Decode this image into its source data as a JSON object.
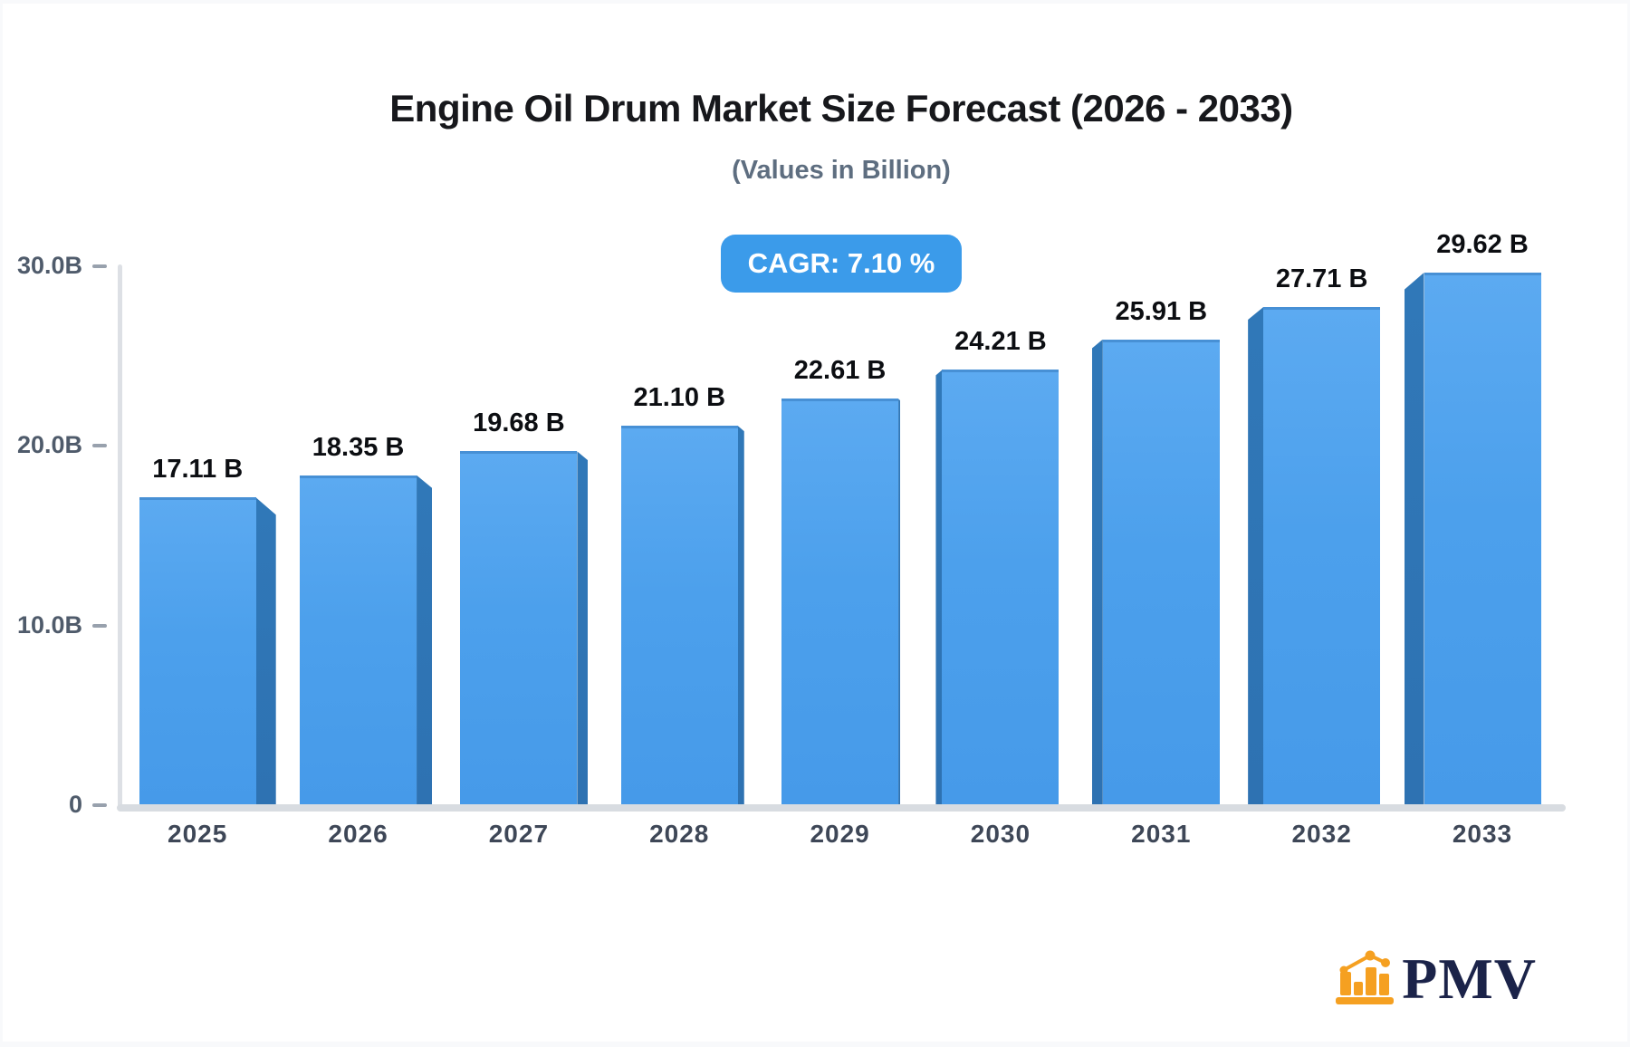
{
  "page": {
    "background": "#F8F9FB",
    "card_background": "#FFFFFF"
  },
  "header": {
    "title": "Engine Oil Drum Market Size Forecast (2026 - 2033)",
    "subtitle": "(Values in Billion)",
    "cagr_label": "CAGR: 7.10 %"
  },
  "chart_data": {
    "type": "bar",
    "title": "Engine Oil Drum Market Size Forecast (2026 - 2033)",
    "subtitle": "(Values in Billion)",
    "cagr": "7.10 %",
    "categories": [
      "2025",
      "2026",
      "2027",
      "2028",
      "2029",
      "2030",
      "2031",
      "2032",
      "2033"
    ],
    "values": [
      17.11,
      18.35,
      19.68,
      21.1,
      22.61,
      24.21,
      25.91,
      27.71,
      29.62
    ],
    "bar_labels": [
      "17.11 B",
      "18.35 B",
      "19.68 B",
      "21.10 B",
      "22.61 B",
      "24.21 B",
      "25.91 B",
      "27.71 B",
      "29.62 B"
    ],
    "xlabel": "",
    "ylabel": "",
    "ylim": [
      0,
      30
    ],
    "yticks": [
      {
        "label": "30.0B",
        "value": 30
      },
      {
        "label": "20.0B",
        "value": 20
      },
      {
        "label": "10.0B",
        "value": 10
      },
      {
        "label": "0",
        "value": 0
      }
    ],
    "grid": false,
    "legend": false,
    "colors": {
      "bar_face_top": "#5CAAF1",
      "bar_face_bottom": "#469AE9",
      "bar_side": "#2E72B2",
      "axis_line": "#DDE0E5",
      "baseline": "#D8DCE1",
      "tick": "#98A1AD",
      "ytick_text": "#4F5B6B",
      "xtick_text": "#3E4757",
      "value_text": "#0C0E12",
      "badge_background": "#3B9BEA",
      "badge_text": "#FFFFFF"
    }
  },
  "branding": {
    "logo_text": "PMV",
    "logo_icon": "bar-chart-icon",
    "logo_text_color": "#1B2349",
    "logo_icon_color": "#F5A021"
  }
}
